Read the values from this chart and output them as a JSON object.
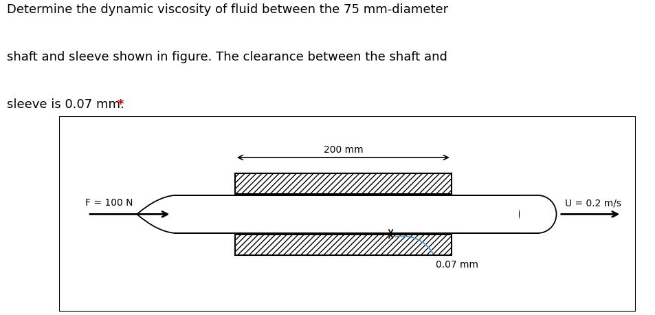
{
  "title_line1": "Determine the dynamic viscosity of fluid between the 75 mm-diameter",
  "title_line2": "shaft and sleeve shown in figure. The clearance between the shaft and",
  "title_line3_main": "sleeve is 0.07 mm. ",
  "title_line3_star": "*",
  "box_bg": "#ffffff",
  "border_color": "#000000",
  "text_color": "#000000",
  "star_color": "#cc0000",
  "annotation_color": "#5599cc",
  "fig_bg": "#ffffff",
  "label_F": "F = 100 N",
  "label_U": "U = 0.2 m/s",
  "label_200mm": "200 mm",
  "label_007mm": "0.07 mm",
  "title_fontsize": 13,
  "diagram_fontsize": 10
}
